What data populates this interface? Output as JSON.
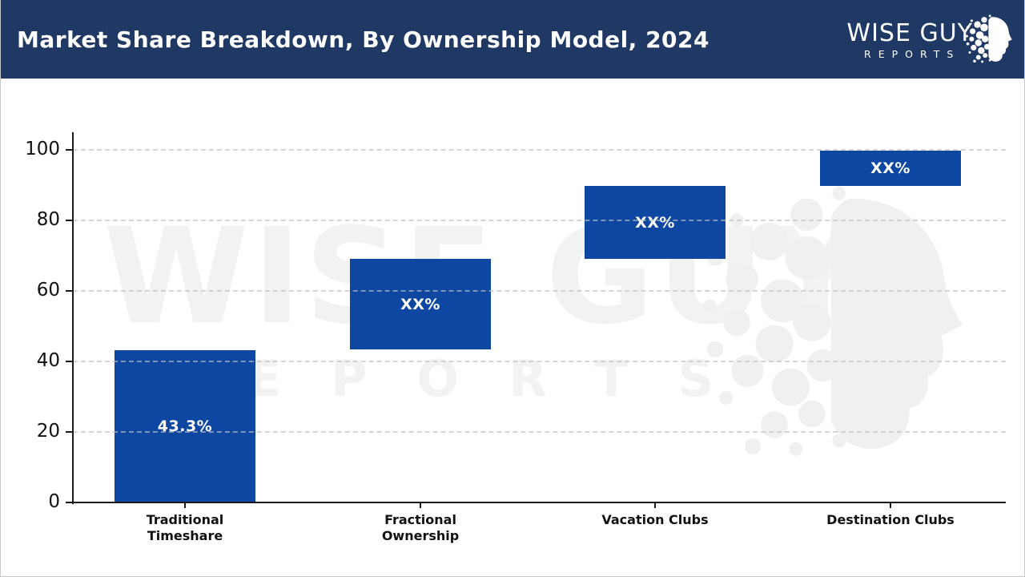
{
  "header": {
    "title": "Market Share Breakdown, By Ownership Model, 2024",
    "bg_color": "#1f3864",
    "logo": {
      "line1": "WISE GUY",
      "line2": "REPORTS"
    }
  },
  "watermark": {
    "line1": "WISE GUY",
    "line2": "REPORTS"
  },
  "chart_data": {
    "type": "bar",
    "subtype": "waterfall",
    "title": "Market Share Breakdown, By Ownership Model, 2024",
    "categories": [
      "Traditional Timeshare",
      "Fractional Ownership",
      "Vacation Clubs",
      "Destination Clubs"
    ],
    "category_label_lines": [
      [
        "Traditional",
        "Timeshare"
      ],
      [
        "Fractional",
        "Ownership"
      ],
      [
        "Vacation Clubs"
      ],
      [
        "Destination Clubs"
      ]
    ],
    "segments": [
      {
        "category": "Traditional Timeshare",
        "start": 0,
        "end": 43.3,
        "label": "43.3%"
      },
      {
        "category": "Fractional Ownership",
        "start": 43.3,
        "end": 69,
        "label": "XX%"
      },
      {
        "category": "Vacation Clubs",
        "start": 69,
        "end": 89.8,
        "label": "XX%"
      },
      {
        "category": "Destination Clubs",
        "start": 89.8,
        "end": 99.8,
        "label": "XX%"
      }
    ],
    "y_ticks": [
      0,
      20,
      40,
      60,
      80,
      100
    ],
    "ylim": [
      0,
      104
    ],
    "xlabel": "",
    "ylabel": "",
    "bar_color": "#0d47a1",
    "value_label_color": "#ffffff",
    "grid": "horizontal-dashed",
    "legend": "none"
  }
}
